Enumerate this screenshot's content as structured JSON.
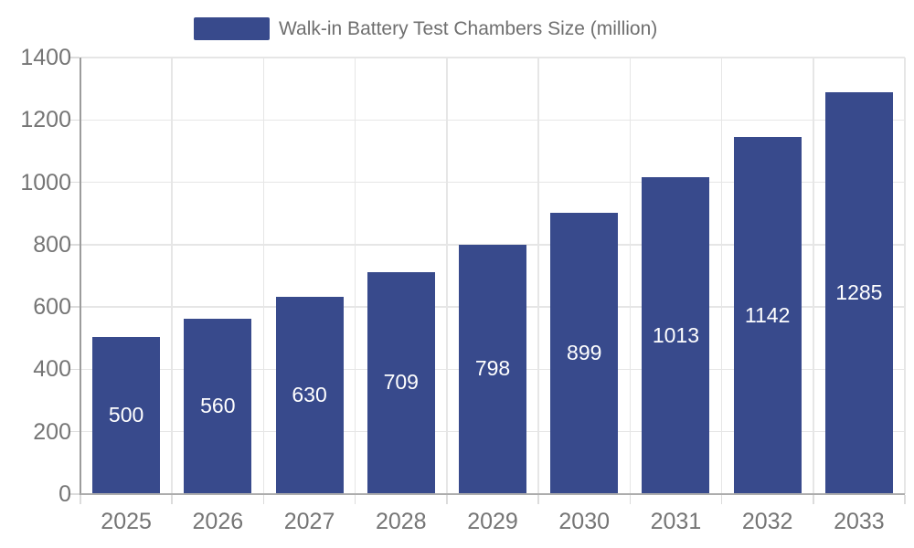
{
  "chart_data": {
    "type": "bar",
    "title": "Walk-in Battery Test Chambers Size (million)",
    "categories": [
      "2025",
      "2026",
      "2027",
      "2028",
      "2029",
      "2030",
      "2031",
      "2032",
      "2033"
    ],
    "values": [
      500,
      560,
      630,
      709,
      798,
      899,
      1013,
      1142,
      1285
    ],
    "series": [
      {
        "name": "Walk-in Battery Test Chambers Size (million)",
        "values": [
          500,
          560,
          630,
          709,
          798,
          899,
          1013,
          1142,
          1285
        ]
      }
    ],
    "xlabel": "",
    "ylabel": "",
    "ylim": [
      0,
      1400
    ],
    "yticks": [
      0,
      200,
      400,
      600,
      800,
      1000,
      1200,
      1400
    ],
    "grid": true,
    "legend_position": "top-center",
    "value_labels": "inside-center-white"
  },
  "colors": {
    "bar": "#384A8C",
    "gridline": "#E6E6E6",
    "tick_mark": "#DCDCDC",
    "y_axis_line": "#9C9C9C",
    "x_axis_line": "#ADADAD",
    "tick_label": "#757575",
    "title_text": "#6F6F6F",
    "value_label": "#FFFFFF",
    "background": "#FFFFFF"
  }
}
